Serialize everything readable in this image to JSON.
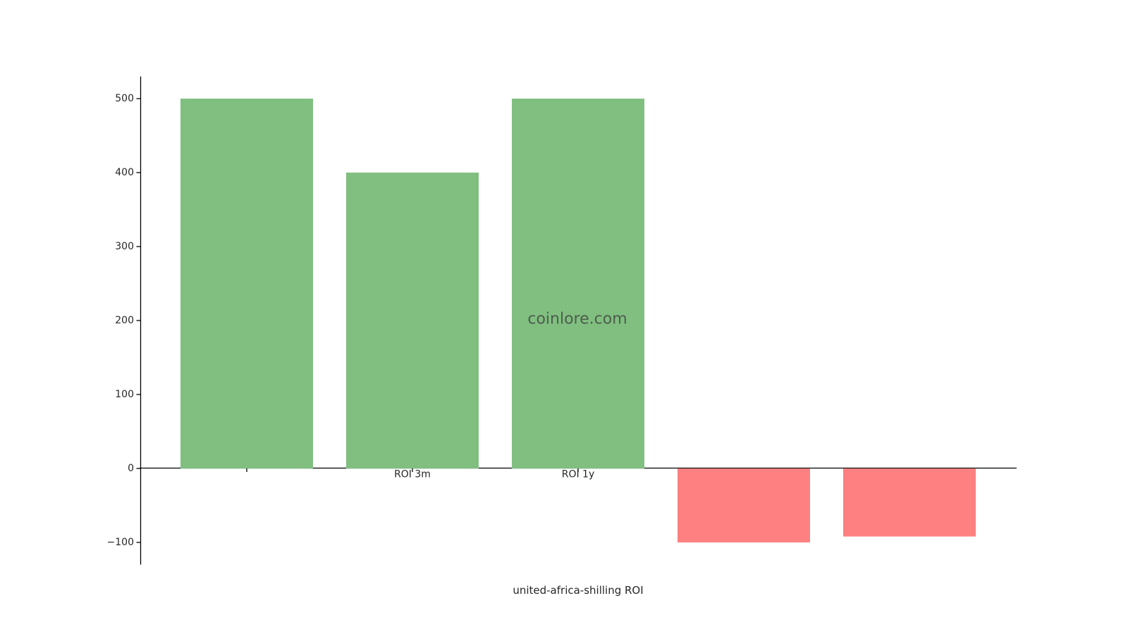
{
  "page": {
    "background_color": "#ffffff"
  },
  "chart_data": {
    "type": "bar",
    "categories": [
      "",
      "ROI 3m",
      "ROI 1y",
      "",
      ""
    ],
    "values": [
      500,
      400,
      500,
      -100,
      -92
    ],
    "x_ticks_visible": [
      true,
      true,
      true,
      false,
      false
    ],
    "title": "",
    "xlabel": "united-africa-shilling ROI",
    "ylabel": "",
    "yticks": [
      -100,
      0,
      100,
      200,
      300,
      400,
      500
    ],
    "ylim": [
      -130,
      530
    ],
    "grid": false,
    "legend": null,
    "watermark": "coinlore.com",
    "positive_color": "#80bf80",
    "negative_color": "#ff8080",
    "axis_color": "#000000",
    "tick_label_color": "#262626",
    "watermark_color": "#404040"
  }
}
